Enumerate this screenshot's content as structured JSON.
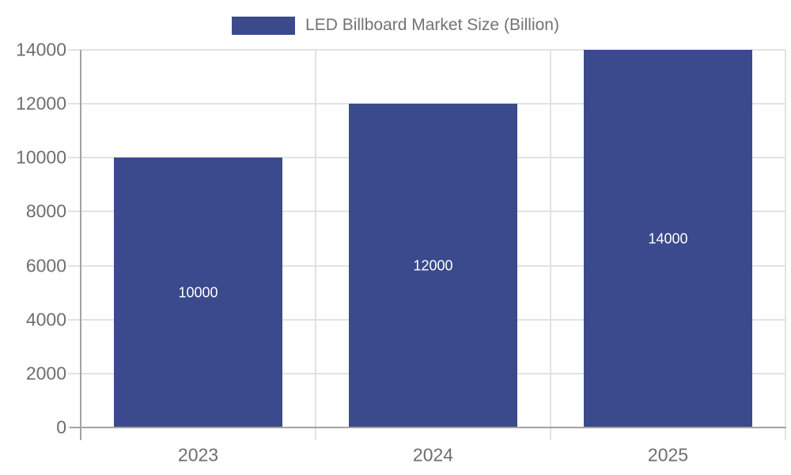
{
  "legend": {
    "label": "LED Billboard Market Size (Billion)"
  },
  "chart_data": {
    "type": "bar",
    "title": "LED Billboard Market Size (Billion)",
    "categories": [
      "2023",
      "2024",
      "2025"
    ],
    "values": [
      10000,
      12000,
      14000
    ],
    "series": [
      {
        "name": "LED Billboard Market Size (Billion)",
        "values": [
          10000,
          12000,
          14000
        ]
      }
    ],
    "value_labels": [
      "10000",
      "12000",
      "14000"
    ],
    "xlabel": "",
    "ylabel": "",
    "ylim": [
      0,
      14000
    ],
    "ytick_step": 2000,
    "ytick_labels": [
      "0",
      "2000",
      "4000",
      "6000",
      "8000",
      "10000",
      "12000",
      "14000"
    ],
    "grid": true,
    "legend_position": "top-center",
    "colors": {
      "bar": "#3b4a8c",
      "grid": "#e2e2e2",
      "axis": "#a3a3a3",
      "tick_label": "#6e6e6e",
      "title": "#737373",
      "value_label": "#ffffff",
      "background": "#ffffff"
    }
  }
}
